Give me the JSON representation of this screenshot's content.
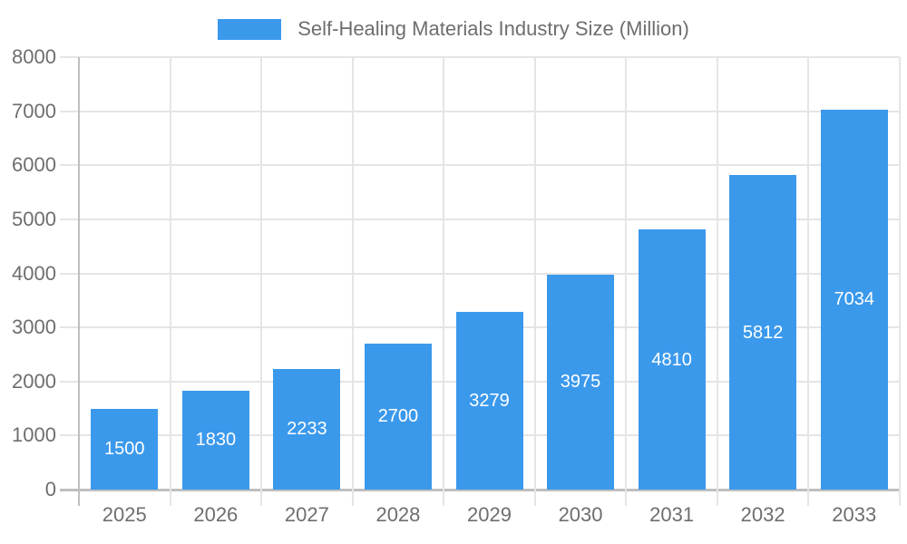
{
  "legend": {
    "label": "Self-Healing Materials Industry Size (Million)"
  },
  "colors": {
    "bar": "#3b99ec",
    "grid": "#e5e5e5",
    "axis": "#bfbfbf",
    "tick_text": "#6e6e6e",
    "value_label": "#ffffff",
    "background": "#ffffff"
  },
  "chart_data": {
    "type": "bar",
    "title": "Self-Healing Materials Industry Size (Million)",
    "series_name": "Self-Healing Materials Industry Size (Million)",
    "categories": [
      "2025",
      "2026",
      "2027",
      "2028",
      "2029",
      "2030",
      "2031",
      "2032",
      "2033"
    ],
    "values": [
      1500,
      1830,
      2233,
      2700,
      3279,
      3975,
      4810,
      5812,
      7034
    ],
    "value_labels": [
      "1500",
      "1830",
      "2233",
      "2700",
      "3279",
      "3975",
      "4810",
      "5812",
      "7034"
    ],
    "xlabel": "",
    "ylabel": "",
    "ylim": [
      0,
      8000
    ],
    "ytick_step": 1000,
    "yticks": [
      "0",
      "1000",
      "2000",
      "3000",
      "4000",
      "5000",
      "6000",
      "7000",
      "8000"
    ],
    "grid": true,
    "legend_position": "top",
    "value_label_style": "white-centered-inside-bar"
  }
}
